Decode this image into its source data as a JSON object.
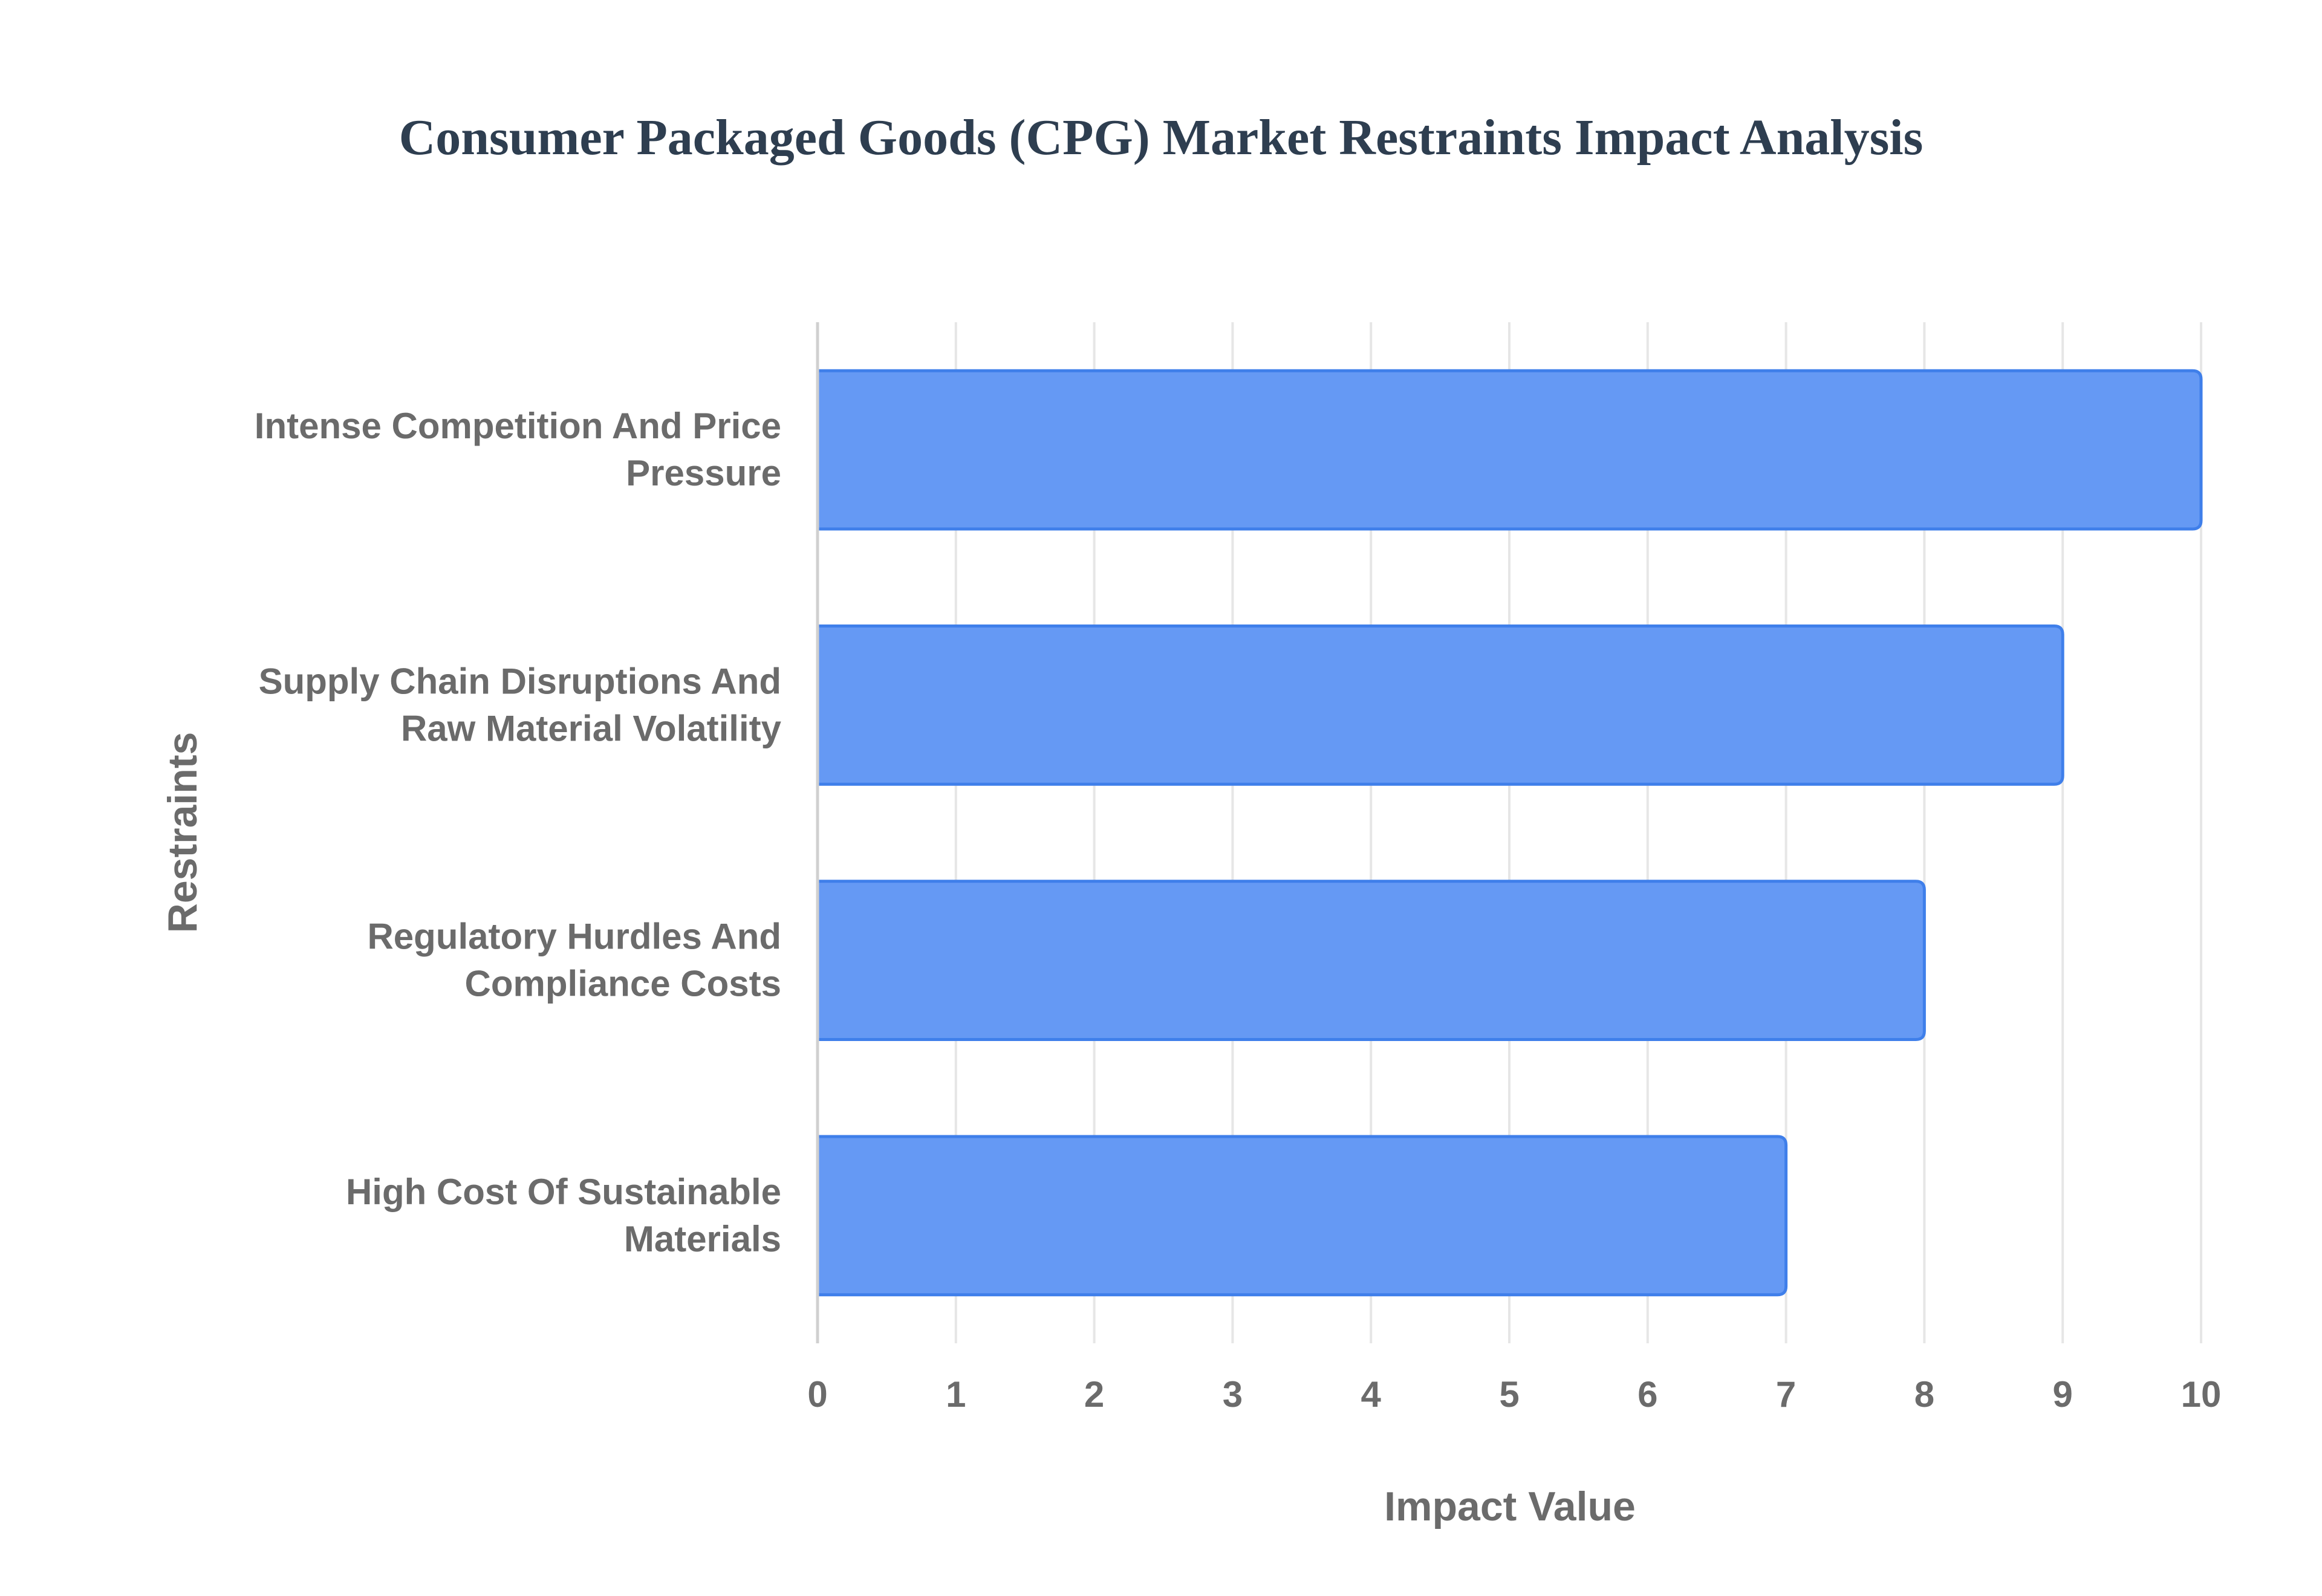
{
  "chart_data": {
    "type": "bar",
    "orientation": "horizontal",
    "title": "Consumer Packaged Goods (CPG) Market Restraints Impact Analysis",
    "xlabel": "Impact Value",
    "ylabel": "Restraints",
    "categories": [
      [
        "Intense Competition And Price",
        "Pressure"
      ],
      [
        "Supply Chain Disruptions And",
        "Raw Material Volatility"
      ],
      [
        "Regulatory Hurdles And",
        "Compliance Costs"
      ],
      [
        "High Cost Of Sustainable",
        "Materials"
      ]
    ],
    "values": [
      10,
      9,
      8,
      7
    ],
    "xlim": [
      0,
      10
    ],
    "xticks": [
      "0",
      "1",
      "2",
      "3",
      "4",
      "5",
      "6",
      "7",
      "8",
      "9",
      "10"
    ],
    "grid": true,
    "legend": false,
    "colors": {
      "bar_fill": "#6599f4",
      "bar_stroke": "#3f7fea",
      "text": "#6b6b6b",
      "title": "#2e3e50"
    }
  }
}
